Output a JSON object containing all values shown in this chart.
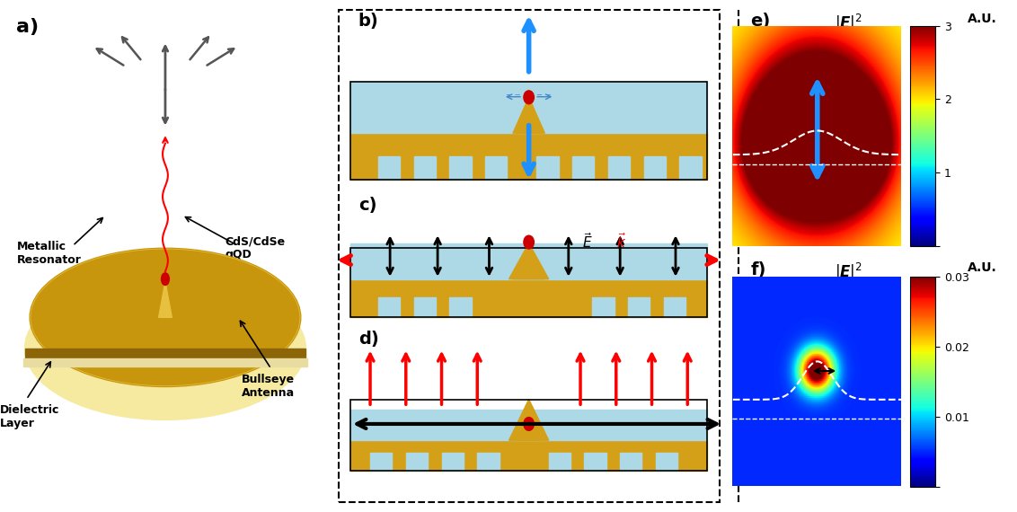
{
  "panel_a_label": "a)",
  "panel_b_label": "b)",
  "panel_c_label": "c)",
  "panel_d_label": "d)",
  "panel_e_label": "e)",
  "panel_f_label": "f)",
  "label_metallic_resonator": "Metallic\nResonator",
  "label_cds": "CdS/CdSe\ngQD",
  "label_dielectric": "Dielectric\nLayer",
  "label_bullseye": "Bullseye\nAntenna",
  "label_E2": "|$\\boldsymbol{E}$|$^2$",
  "label_AU": "A.U.",
  "gold_color": "#D4A017",
  "gold_dark": "#B8860B",
  "light_blue": "#ADD8E6",
  "sky_blue": "#87CEEB",
  "blue_arrow": "#1E90FF",
  "red_dot": "#CC0000",
  "background": "#FFFFFF",
  "dashed_border": "#333333"
}
